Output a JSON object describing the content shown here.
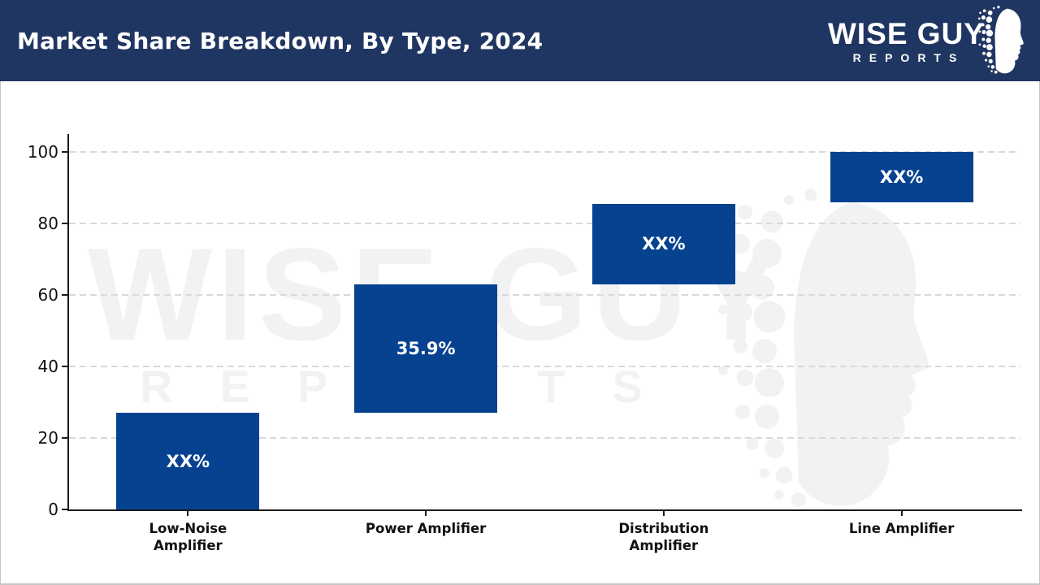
{
  "header": {
    "logo": {
      "line1": "WISE GUY",
      "line2": "REPORTS"
    }
  },
  "watermark": {
    "line1": "WISE GUY",
    "line2": "REPORTS"
  },
  "chart_data": {
    "type": "bar",
    "subtype": "floating-segment-waterfall",
    "title": "Market Share Breakdown, By Type, 2024",
    "categories": [
      "Low-Noise\nAmplifier",
      "Power Amplifier",
      "Distribution\nAmplifier",
      "Line Amplifier"
    ],
    "bars": [
      {
        "category": "Low-Noise Amplifier",
        "start": 0,
        "end": 27,
        "label": "XX%"
      },
      {
        "category": "Power Amplifier",
        "start": 27.1,
        "end": 63,
        "label": "35.9%"
      },
      {
        "category": "Distribution Amplifier",
        "start": 63,
        "end": 85.5,
        "label": "XX%"
      },
      {
        "category": "Line Amplifier",
        "start": 85.8,
        "end": 100,
        "label": "XX%"
      }
    ],
    "xlabel": "",
    "ylabel": "",
    "ylim": [
      0,
      100
    ],
    "yticks": [
      0,
      20,
      40,
      60,
      80,
      100
    ],
    "grid": "horizontal-dashed",
    "legend": "none",
    "colors": {
      "bar": "#074291",
      "header_bg": "#203662",
      "grid": "#d9d9d9",
      "axis": "#1a1a1a",
      "bar_label": "#ffffff",
      "watermark": "#f2f2f4"
    }
  }
}
